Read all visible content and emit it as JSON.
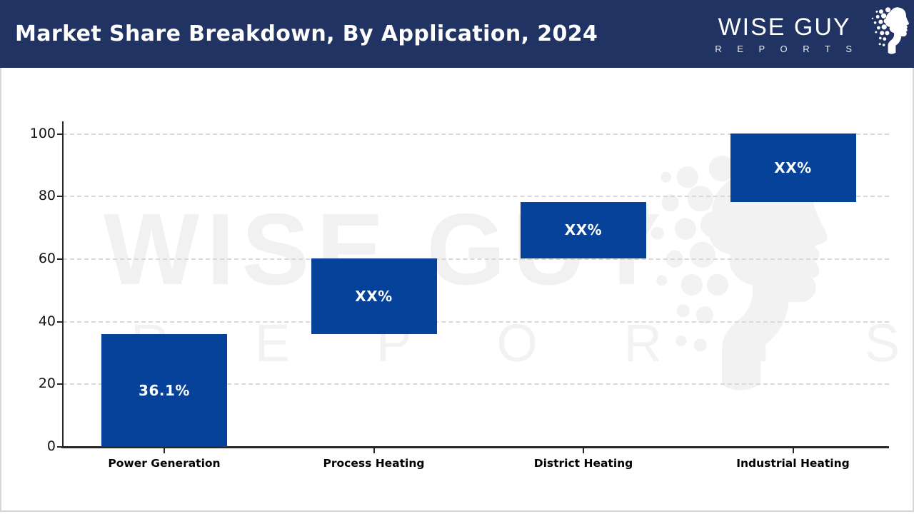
{
  "header": {
    "title": "Market Share Breakdown, By Application, 2024",
    "background": "#203363",
    "logo": {
      "wordmark": "WISE GUY",
      "subtext": "R E P O R T S"
    }
  },
  "watermark": {
    "wordmark": "WISE GUY",
    "subtext": "R E P O R T S"
  },
  "chart_data": {
    "type": "bar",
    "variant": "waterfall",
    "title": "Market Share Breakdown, By Application, 2024",
    "categories": [
      "Power Generation",
      "Process Heating",
      "District Heating",
      "Industrial Heating"
    ],
    "segments": [
      {
        "category": "Power Generation",
        "start": 0,
        "end": 36.1,
        "label": "36.1%"
      },
      {
        "category": "Process Heating",
        "start": 36.1,
        "end": 60.1,
        "label": "XX%"
      },
      {
        "category": "District Heating",
        "start": 60.3,
        "end": 78.2,
        "label": "XX%"
      },
      {
        "category": "Industrial Heating",
        "start": 78.2,
        "end": 100.2,
        "label": "XX%"
      }
    ],
    "yticks": [
      0,
      20,
      40,
      60,
      80,
      100
    ],
    "ylim": [
      0,
      104
    ],
    "grid": "horizontal-dashed",
    "legend": "none",
    "bar_color": "#064299",
    "bar_label_color": "#ffffff",
    "gridline_color": "#d9d9d9",
    "axis_color": "#262626"
  }
}
